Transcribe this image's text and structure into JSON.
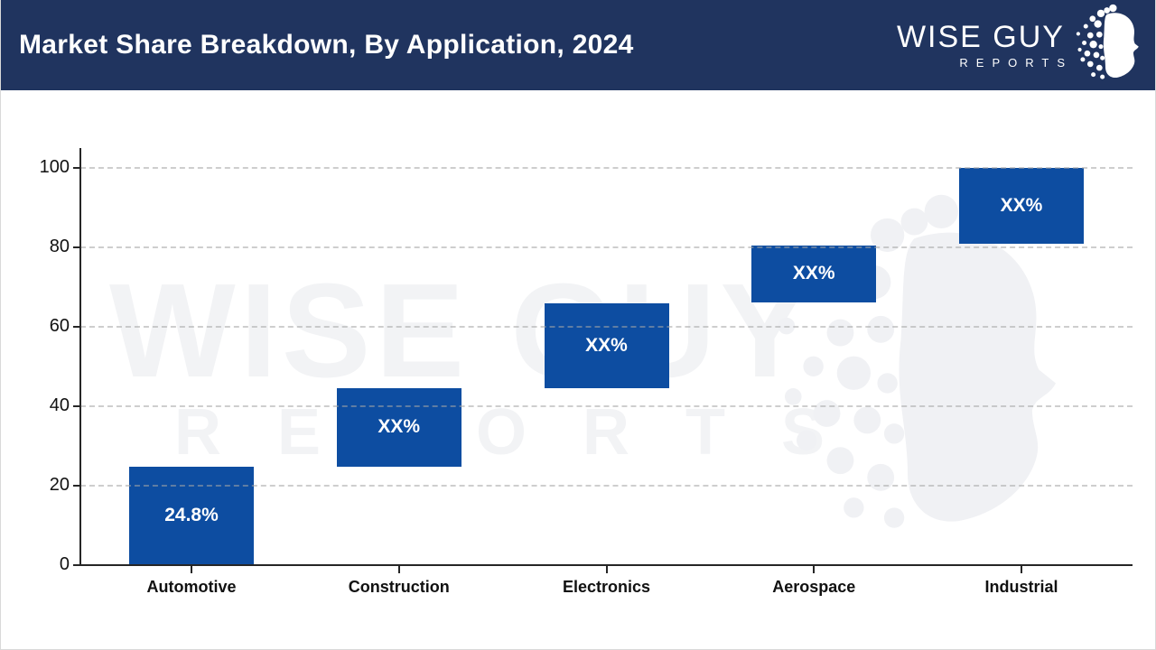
{
  "header": {
    "title": "Market Share Breakdown, By Application, 2024",
    "logo": {
      "line1": "WISE GUY",
      "line2": "REPORTS"
    },
    "bg_color": "#20345f",
    "text_color": "#ffffff"
  },
  "watermark": {
    "line1": "WISE GUY",
    "line2": "REPORTS"
  },
  "chart_data": {
    "type": "bar",
    "subtype": "waterfall-stacked-breakdown",
    "title": "Market Share Breakdown, By Application, 2024",
    "xlabel": "",
    "ylabel": "",
    "categories": [
      "Automotive",
      "Construction",
      "Electronics",
      "Aerospace",
      "Industrial"
    ],
    "segments": [
      {
        "category": "Automotive",
        "start": 0,
        "end": 24.8,
        "value": 24.8,
        "label": "24.8%"
      },
      {
        "category": "Construction",
        "start": 24.8,
        "end": 44.5,
        "value": 19.7,
        "label": "XX%"
      },
      {
        "category": "Electronics",
        "start": 44.5,
        "end": 65.8,
        "value": 21.3,
        "label": "XX%"
      },
      {
        "category": "Aerospace",
        "start": 66.1,
        "end": 80.4,
        "value": 14.3,
        "label": "XX%"
      },
      {
        "category": "Industrial",
        "start": 80.8,
        "end": 100,
        "value": 19.2,
        "label": "XX%"
      }
    ],
    "y_ticks": [
      0,
      20,
      40,
      60,
      80,
      100
    ],
    "ylim": [
      0,
      105
    ],
    "grid": true,
    "grid_style": "dashed",
    "grid_color": "#d9d9d9",
    "bar_color": "#0d4da1",
    "bar_label_color": "#ffffff",
    "legend": "none"
  }
}
